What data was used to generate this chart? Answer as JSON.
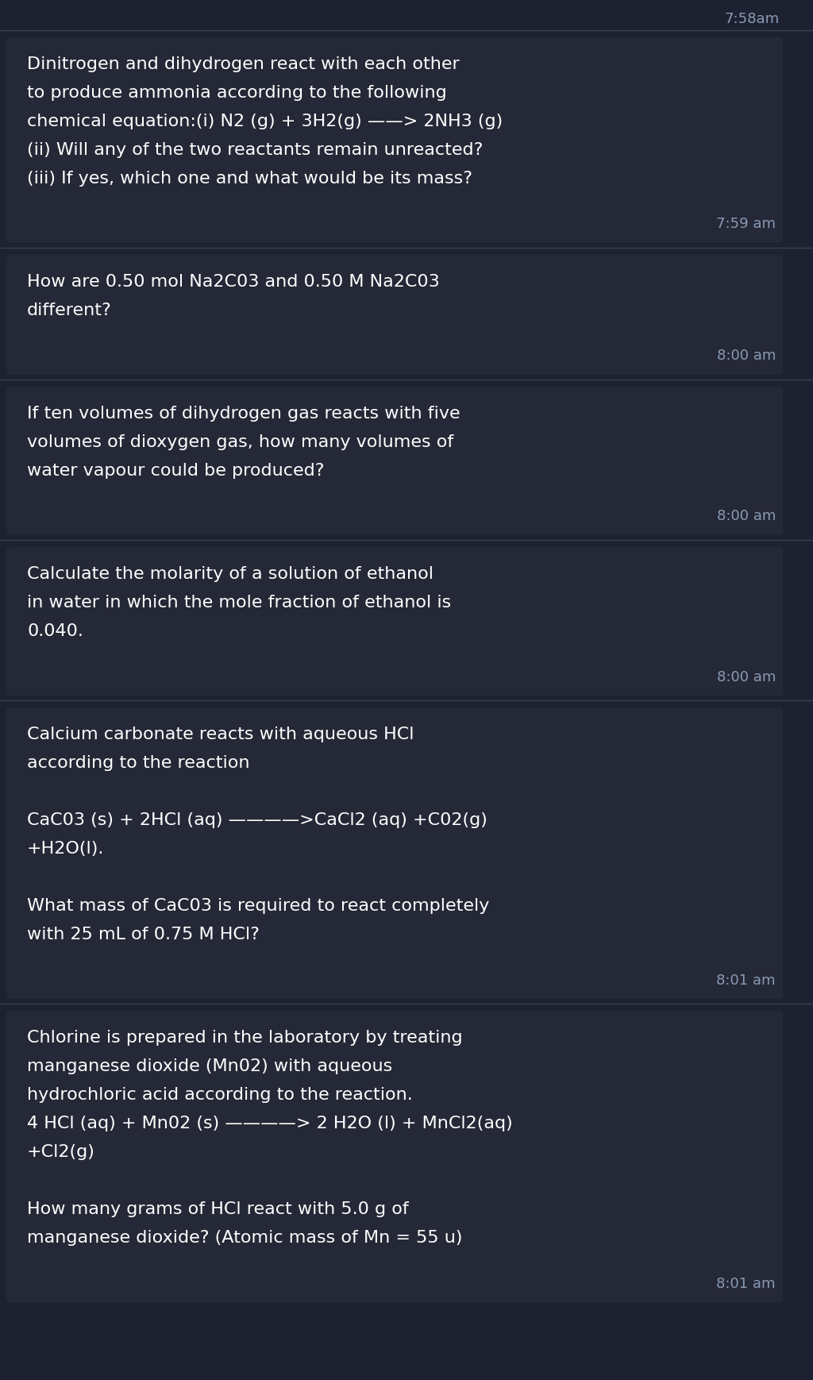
{
  "background_color": "#1e2130",
  "bubble_color": "#252836",
  "text_color": "#ffffff",
  "time_color": "#8a9ab5",
  "separator_color": "#3a4050",
  "font_size": 16,
  "time_font_size": 13,
  "fig_width": 10.24,
  "fig_height": 17.38,
  "dpi": 100,
  "messages": [
    {
      "lines": [
        "Dinitrogen and dihydrogen react with each other",
        "to produce ammonia according to the following",
        "chemical equation:(i) N2 (g) + 3H2(g) ——> 2NH3 (g)",
        "(ii) Will any of the two reactants remain unreacted?",
        "(iii) If yes, which one and what would be its mass?"
      ],
      "time": "7:59 am"
    },
    {
      "lines": [
        "How are 0.50 mol Na2C03 and 0.50 M Na2C03",
        "different?"
      ],
      "time": "8:00 am"
    },
    {
      "lines": [
        "If ten volumes of dihydrogen gas reacts with five",
        "volumes of dioxygen gas, how many volumes of",
        "water vapour could be produced?"
      ],
      "time": "8:00 am"
    },
    {
      "lines": [
        "Calculate the molarity of a solution of ethanol",
        "in water in which the mole fraction of ethanol is",
        "0.040."
      ],
      "time": "8:00 am"
    },
    {
      "lines": [
        "Calcium carbonate reacts with aqueous HCl",
        "according to the reaction",
        "",
        "CaC03 (s) + 2HCl (aq) ————>CaCl2 (aq) +C02(g)",
        "+H2O(l).",
        "",
        "What mass of CaC03 is required to react completely",
        "with 25 mL of 0.75 M HCl?"
      ],
      "time": "8:01 am"
    },
    {
      "lines": [
        "Chlorine is prepared in the laboratory by treating",
        "manganese dioxide (Mn02) with aqueous",
        "hydrochloric acid according to the reaction.",
        "4 HCl (aq) + Mn02 (s) ————> 2 H2O (l) + MnCl2(aq)",
        "+Cl2(g)",
        "",
        "How many grams of HCl react with 5.0 g of",
        "manganese dioxide? (Atomic mass of Mn = 55 u)"
      ],
      "time": "8:01 am"
    }
  ],
  "top_time": "7:58am"
}
